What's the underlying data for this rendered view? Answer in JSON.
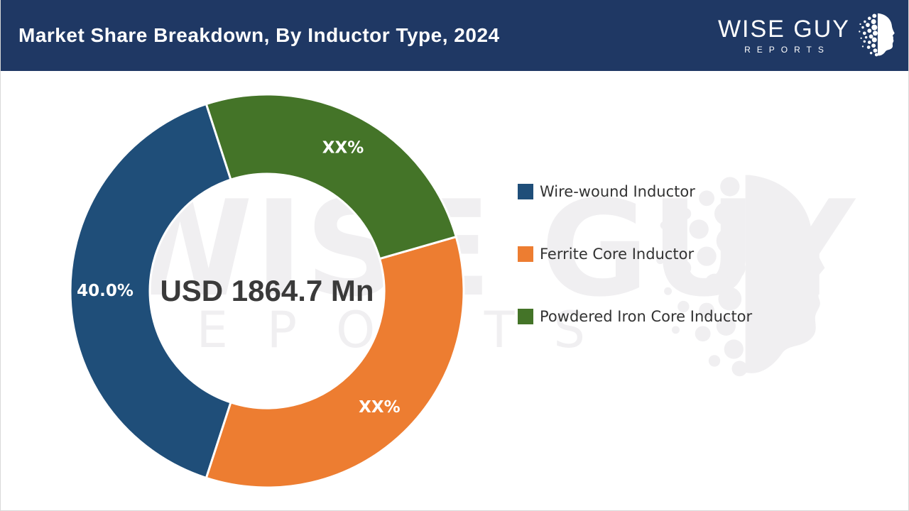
{
  "header": {
    "title": "Market Share Breakdown, By Inductor Type, 2024",
    "bg_color": "#1F3864",
    "brand": {
      "name": "WISE GUY",
      "sub": "REPORTS"
    }
  },
  "watermark": {
    "wordmark": "WISE GUY",
    "sub": "REPORTS"
  },
  "chart_data": {
    "type": "pie",
    "subtype": "donut",
    "title": "Market Share Breakdown, By Inductor Type, 2024",
    "center_label": "USD 1864.7 Mn",
    "total_value": 1864.7,
    "unit": "USD Mn",
    "legend_position": "right",
    "colors": {
      "blue": "#1F4E79",
      "orange": "#ED7D31",
      "green": "#447428"
    },
    "segments": [
      {
        "name": "Wire-wound Inductor",
        "label": "40.0%",
        "share_pct": 40.0,
        "color": "#1F4E79",
        "start_deg": 108,
        "end_deg": 252
      },
      {
        "name": "Ferrite Core Inductor",
        "label": "XX%",
        "share_pct_est": 34.4,
        "color": "#ED7D31",
        "start_deg": -108,
        "end_deg": 16
      },
      {
        "name": "Powdered Iron Core Inductor",
        "label": "XX%",
        "share_pct_est": 25.6,
        "color": "#447428",
        "start_deg": 16,
        "end_deg": 108
      }
    ]
  }
}
